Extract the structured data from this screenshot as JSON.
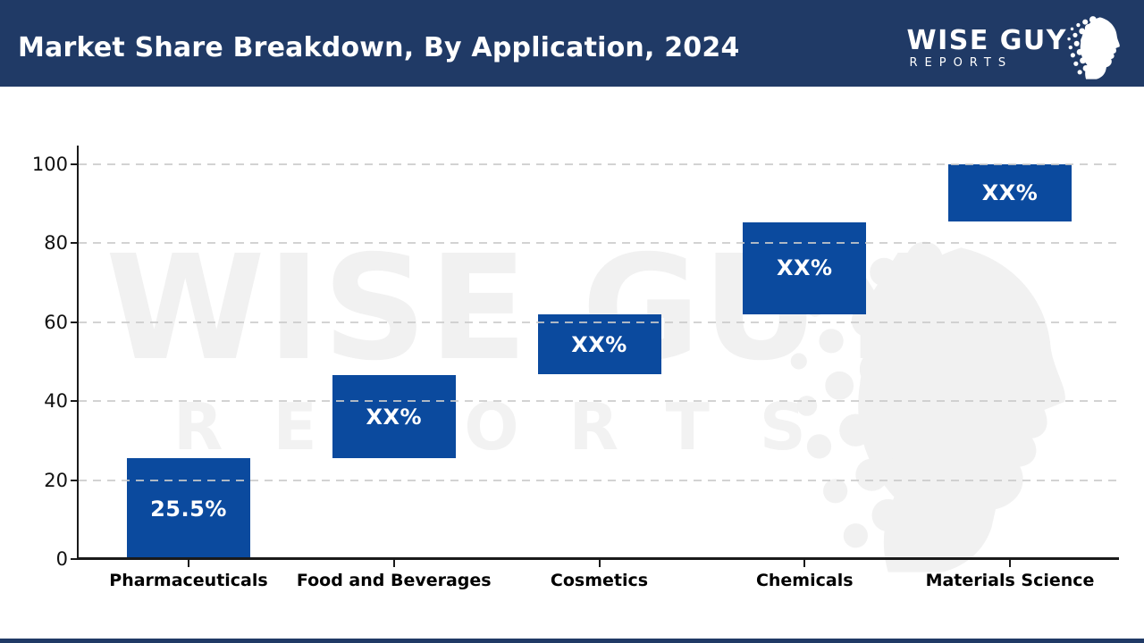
{
  "header": {
    "title": "Market Share Breakdown, By Application, 2024",
    "logo": {
      "line1": "WISE GUY",
      "line2": "REPORTS"
    }
  },
  "watermark": {
    "line1": "WISE GUY",
    "line2": "REPORTS"
  },
  "chart_data": {
    "type": "bar",
    "subtype": "waterfall-floating-segments",
    "title": "Market Share Breakdown, By Application, 2024",
    "categories": [
      "Pharmaceuticals",
      "Food and Beverages",
      "Cosmetics",
      "Chemicals",
      "Materials Science"
    ],
    "segments": [
      {
        "category": "Pharmaceuticals",
        "start": 0,
        "end": 25.5,
        "label": "25.5%"
      },
      {
        "category": "Food and Beverages",
        "start": 25.5,
        "end": 46.6,
        "label": "XX%"
      },
      {
        "category": "Cosmetics",
        "start": 46.8,
        "end": 62.0,
        "label": "XX%"
      },
      {
        "category": "Chemicals",
        "start": 62.0,
        "end": 85.3,
        "label": "XX%"
      },
      {
        "category": "Materials Science",
        "start": 85.5,
        "end": 100,
        "label": "XX%"
      }
    ],
    "yticks": [
      0,
      20,
      40,
      60,
      80,
      100
    ],
    "ylim": [
      0,
      105
    ],
    "xlabel": "",
    "ylabel": "",
    "grid": "horizontal-dashed",
    "legend": "none"
  },
  "colors": {
    "header_bg": "#203a66",
    "footer_bg": "#203a66",
    "bar": "#0b4a9e",
    "bar_label": "#ffffff",
    "grid": "#d4d4d4",
    "axis": "#1a1a1a",
    "watermark": "#f1f1f1"
  }
}
